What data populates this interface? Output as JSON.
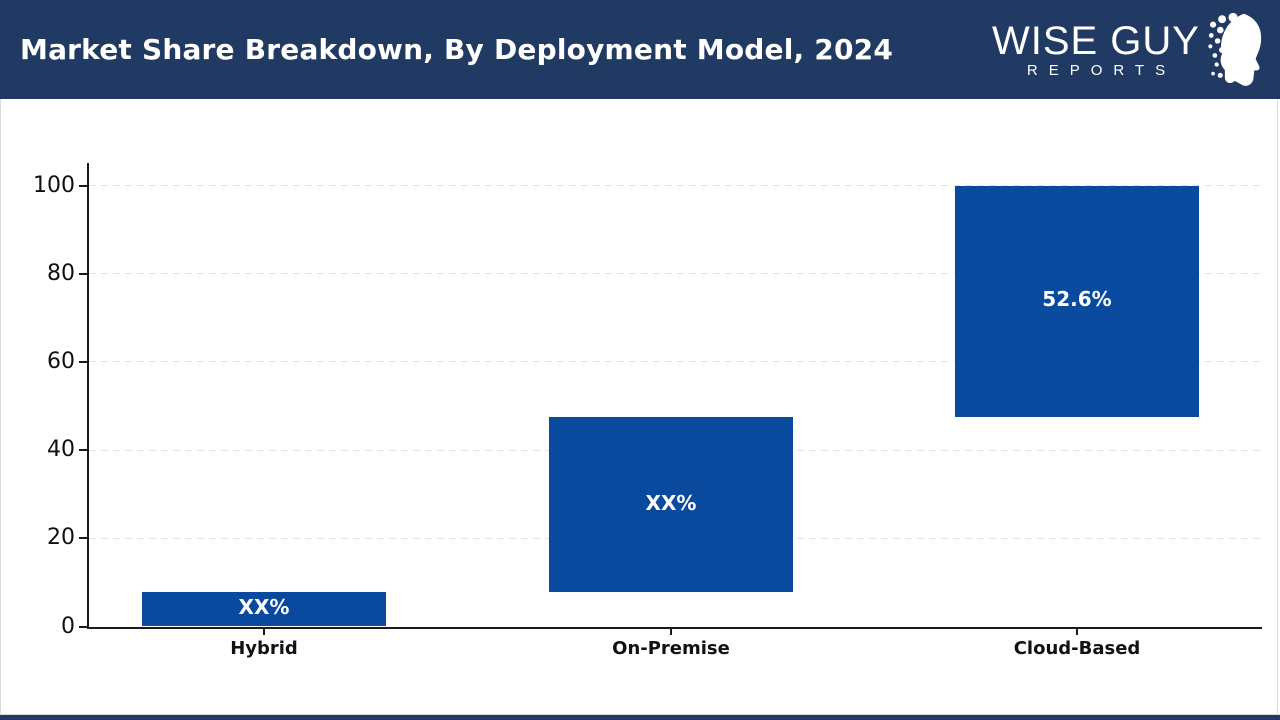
{
  "header": {
    "title": "Market Share Breakdown, By Deployment Model, 2024",
    "background": "#213A64",
    "logo": {
      "line1": "WISE GUY",
      "line2": "REPORTS"
    }
  },
  "watermark": {
    "line1": "WISE GUY",
    "line2": "REPORTS"
  },
  "chart_data": {
    "type": "bar",
    "variant": "stacked-waterfall",
    "title": "Market Share Breakdown, By Deployment Model, 2024",
    "categories": [
      "Hybrid",
      "On-Premise",
      "Cloud-Based"
    ],
    "segments": [
      {
        "category": "Hybrid",
        "start": 0,
        "end": 7.9,
        "value_label": "XX%"
      },
      {
        "category": "On-Premise",
        "start": 7.9,
        "end": 47.4,
        "value_label": "XX%"
      },
      {
        "category": "Cloud-Based",
        "start": 47.4,
        "end": 100,
        "value_label": "52.6%"
      }
    ],
    "xlabel": "",
    "ylabel": "",
    "yticks": [
      0,
      20,
      40,
      60,
      80,
      100
    ],
    "ylim": [
      0,
      105
    ],
    "grid": {
      "horizontal": true,
      "style": "dashed",
      "color": "#e2e2e2"
    },
    "legend": null,
    "bar_color": "#0A4A9E",
    "bar_label_color": "#ffffff",
    "axis_color": "#1a1a1a"
  },
  "footer": {
    "bar_color": "#213A64"
  }
}
